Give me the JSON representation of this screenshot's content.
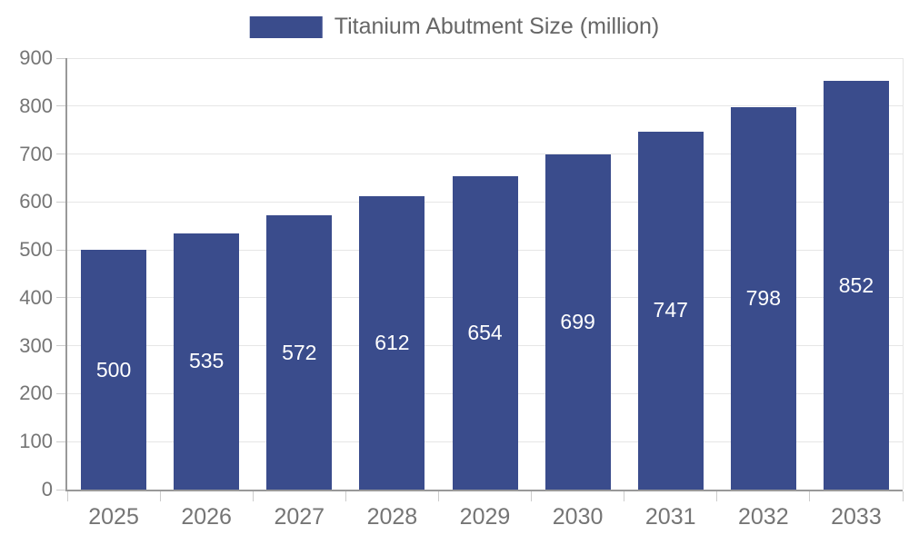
{
  "chart_data": {
    "type": "bar",
    "title": "Titanium Abutment Size (million)",
    "categories": [
      "2025",
      "2026",
      "2027",
      "2028",
      "2029",
      "2030",
      "2031",
      "2032",
      "2033"
    ],
    "values": [
      500,
      535,
      572,
      612,
      654,
      699,
      747,
      798,
      852
    ],
    "xlabel": "",
    "ylabel": "",
    "ylim": [
      0,
      900
    ],
    "ytick_step": 100,
    "grid": true,
    "legend_position": "top",
    "colors": {
      "bar": "#3a4c8c",
      "bar_value_label": "#ffffff",
      "axis_text": "#757575",
      "legend_text": "#666666",
      "gridline": "#e6e6e6",
      "axis_line": "#999999"
    }
  }
}
